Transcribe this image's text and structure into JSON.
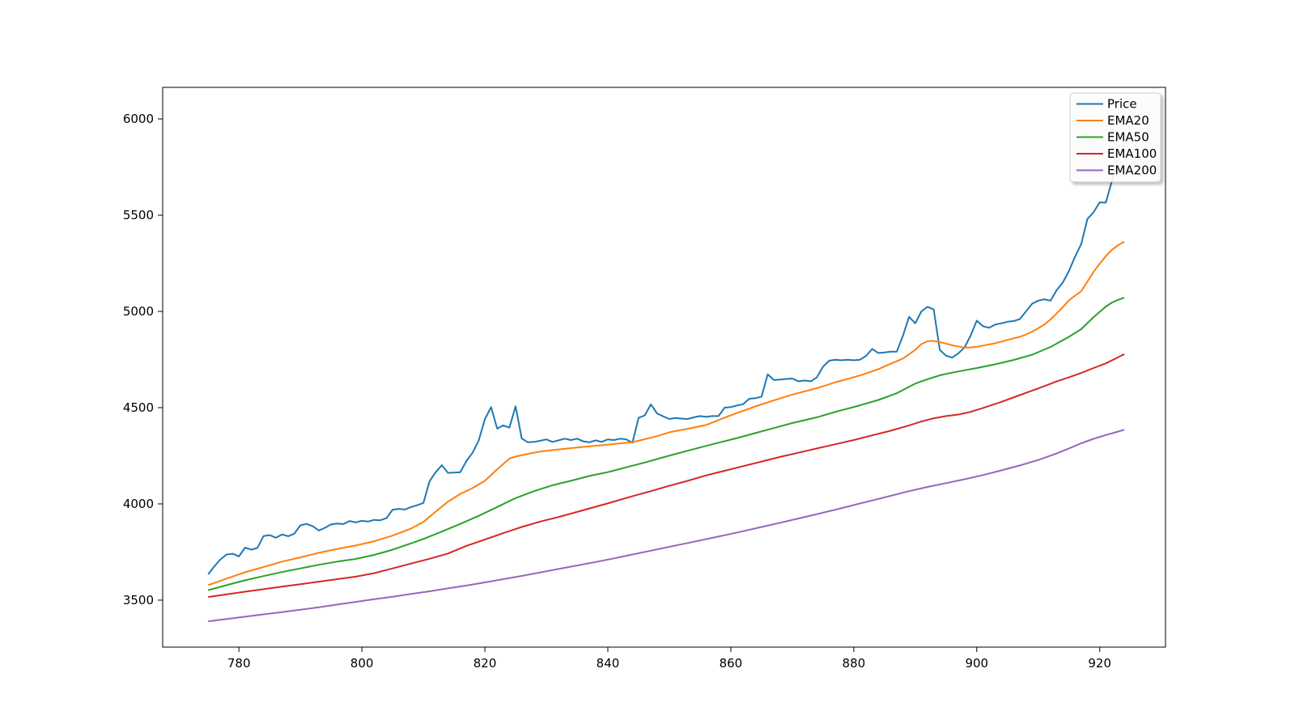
{
  "chart_data": {
    "type": "line",
    "title": "",
    "xlabel": "",
    "ylabel": "",
    "grid": false,
    "legend_position": "upper right",
    "axes": {
      "xlim": [
        767.6,
        930.7
      ],
      "ylim": [
        3256,
        6164
      ],
      "xticks": [
        780,
        800,
        820,
        840,
        860,
        880,
        900,
        920
      ],
      "yticks": [
        3500,
        4000,
        4500,
        5000,
        5500,
        6000
      ]
    },
    "series": [
      {
        "name": "Price",
        "color": "#1f77b4",
        "x_start": 775,
        "dx": 1,
        "values": [
          3634,
          3676,
          3712,
          3737,
          3741,
          3727,
          3773,
          3762,
          3771,
          3833,
          3838,
          3824,
          3841,
          3832,
          3845,
          3889,
          3896,
          3884,
          3862,
          3876,
          3894,
          3898,
          3895,
          3911,
          3904,
          3912,
          3908,
          3917,
          3915,
          3926,
          3970,
          3974,
          3971,
          3984,
          3993,
          4005,
          4117,
          4165,
          4201,
          4161,
          4163,
          4165,
          4223,
          4266,
          4330,
          4440,
          4503,
          4391,
          4408,
          4396,
          4507,
          4340,
          4320,
          4322,
          4328,
          4335,
          4322,
          4330,
          4339,
          4332,
          4339,
          4325,
          4320,
          4330,
          4322,
          4335,
          4332,
          4339,
          4335,
          4318,
          4447,
          4460,
          4517,
          4470,
          4455,
          4441,
          4446,
          4443,
          4441,
          4450,
          4456,
          4453,
          4456,
          4456,
          4500,
          4503,
          4511,
          4518,
          4546,
          4549,
          4557,
          4673,
          4644,
          4646,
          4649,
          4651,
          4637,
          4641,
          4637,
          4658,
          4713,
          4744,
          4749,
          4746,
          4749,
          4746,
          4749,
          4769,
          4805,
          4784,
          4787,
          4791,
          4791,
          4874,
          4972,
          4938,
          5000,
          5024,
          5010,
          4800,
          4770,
          4760,
          4782,
          4812,
          4874,
          4952,
          4923,
          4915,
          4932,
          4938,
          4946,
          4950,
          4960,
          5000,
          5040,
          5056,
          5063,
          5056,
          5110,
          5150,
          5210,
          5285,
          5350,
          5480,
          5515,
          5567,
          5565,
          5680,
          5790,
          5870
        ]
      },
      {
        "name": "EMA20",
        "color": "#ff7f0e",
        "points": [
          [
            775,
            3578
          ],
          [
            778,
            3612
          ],
          [
            781,
            3645
          ],
          [
            784,
            3672
          ],
          [
            787,
            3700
          ],
          [
            790,
            3722
          ],
          [
            793,
            3746
          ],
          [
            796,
            3766
          ],
          [
            799,
            3784
          ],
          [
            802,
            3806
          ],
          [
            805,
            3835
          ],
          [
            808,
            3872
          ],
          [
            810,
            3906
          ],
          [
            812,
            3960
          ],
          [
            814,
            4012
          ],
          [
            816,
            4052
          ],
          [
            818,
            4082
          ],
          [
            820,
            4120
          ],
          [
            822,
            4180
          ],
          [
            824,
            4235
          ],
          [
            825,
            4246
          ],
          [
            827,
            4260
          ],
          [
            829,
            4272
          ],
          [
            832,
            4283
          ],
          [
            835,
            4293
          ],
          [
            838,
            4302
          ],
          [
            841,
            4311
          ],
          [
            844,
            4321
          ],
          [
            846,
            4336
          ],
          [
            848,
            4352
          ],
          [
            850,
            4372
          ],
          [
            853,
            4390
          ],
          [
            856,
            4410
          ],
          [
            859,
            4448
          ],
          [
            861,
            4472
          ],
          [
            864,
            4506
          ],
          [
            867,
            4538
          ],
          [
            870,
            4568
          ],
          [
            874,
            4601
          ],
          [
            877,
            4632
          ],
          [
            881,
            4667
          ],
          [
            884,
            4700
          ],
          [
            886,
            4728
          ],
          [
            888,
            4755
          ],
          [
            890,
            4800
          ],
          [
            891,
            4830
          ],
          [
            892,
            4845
          ],
          [
            893,
            4847
          ],
          [
            894,
            4840
          ],
          [
            895,
            4833
          ],
          [
            896,
            4824
          ],
          [
            897,
            4818
          ],
          [
            898,
            4812
          ],
          [
            899,
            4813
          ],
          [
            900,
            4816
          ],
          [
            901,
            4822
          ],
          [
            902,
            4828
          ],
          [
            903,
            4835
          ],
          [
            904,
            4843
          ],
          [
            905,
            4852
          ],
          [
            906,
            4860
          ],
          [
            907,
            4868
          ],
          [
            908,
            4880
          ],
          [
            909,
            4895
          ],
          [
            910,
            4912
          ],
          [
            911,
            4932
          ],
          [
            912,
            4958
          ],
          [
            913,
            4990
          ],
          [
            914,
            5022
          ],
          [
            915,
            5058
          ],
          [
            916,
            5082
          ],
          [
            917,
            5105
          ],
          [
            918,
            5155
          ],
          [
            919,
            5205
          ],
          [
            920,
            5248
          ],
          [
            921,
            5287
          ],
          [
            922,
            5320
          ],
          [
            923,
            5344
          ],
          [
            924,
            5362
          ]
        ]
      },
      {
        "name": "EMA50",
        "color": "#2ca02c",
        "points": [
          [
            775,
            3552
          ],
          [
            778,
            3578
          ],
          [
            781,
            3603
          ],
          [
            784,
            3625
          ],
          [
            787,
            3646
          ],
          [
            790,
            3665
          ],
          [
            793,
            3684
          ],
          [
            796,
            3700
          ],
          [
            799,
            3714
          ],
          [
            802,
            3735
          ],
          [
            805,
            3762
          ],
          [
            808,
            3795
          ],
          [
            810,
            3818
          ],
          [
            813,
            3856
          ],
          [
            816,
            3896
          ],
          [
            819,
            3938
          ],
          [
            822,
            3984
          ],
          [
            825,
            4030
          ],
          [
            828,
            4066
          ],
          [
            831,
            4097
          ],
          [
            834,
            4120
          ],
          [
            837,
            4145
          ],
          [
            840,
            4165
          ],
          [
            843,
            4190
          ],
          [
            846,
            4215
          ],
          [
            849,
            4242
          ],
          [
            852,
            4268
          ],
          [
            855,
            4293
          ],
          [
            858,
            4318
          ],
          [
            861,
            4342
          ],
          [
            864,
            4368
          ],
          [
            867,
            4394
          ],
          [
            870,
            4420
          ],
          [
            874,
            4450
          ],
          [
            877,
            4478
          ],
          [
            881,
            4512
          ],
          [
            884,
            4540
          ],
          [
            887,
            4575
          ],
          [
            890,
            4625
          ],
          [
            892,
            4648
          ],
          [
            894,
            4668
          ],
          [
            896,
            4682
          ],
          [
            898,
            4694
          ],
          [
            900,
            4706
          ],
          [
            903,
            4725
          ],
          [
            906,
            4748
          ],
          [
            909,
            4775
          ],
          [
            912,
            4815
          ],
          [
            915,
            4868
          ],
          [
            917,
            4908
          ],
          [
            919,
            4970
          ],
          [
            921,
            5025
          ],
          [
            922,
            5046
          ],
          [
            923,
            5060
          ],
          [
            924,
            5072
          ]
        ]
      },
      {
        "name": "EMA100",
        "color": "#d62728",
        "points": [
          [
            775,
            3516
          ],
          [
            778,
            3530
          ],
          [
            781,
            3544
          ],
          [
            784,
            3557
          ],
          [
            787,
            3570
          ],
          [
            790,
            3583
          ],
          [
            793,
            3596
          ],
          [
            796,
            3609
          ],
          [
            799,
            3622
          ],
          [
            802,
            3640
          ],
          [
            805,
            3665
          ],
          [
            808,
            3690
          ],
          [
            811,
            3715
          ],
          [
            814,
            3742
          ],
          [
            817,
            3782
          ],
          [
            820,
            3815
          ],
          [
            823,
            3848
          ],
          [
            826,
            3880
          ],
          [
            829,
            3908
          ],
          [
            832,
            3932
          ],
          [
            835,
            3958
          ],
          [
            838,
            3985
          ],
          [
            841,
            4012
          ],
          [
            844,
            4040
          ],
          [
            847,
            4066
          ],
          [
            850,
            4094
          ],
          [
            853,
            4120
          ],
          [
            856,
            4148
          ],
          [
            859,
            4172
          ],
          [
            862,
            4196
          ],
          [
            865,
            4220
          ],
          [
            868,
            4244
          ],
          [
            871,
            4266
          ],
          [
            874,
            4288
          ],
          [
            877,
            4310
          ],
          [
            880,
            4332
          ],
          [
            883,
            4356
          ],
          [
            886,
            4380
          ],
          [
            889,
            4408
          ],
          [
            891,
            4428
          ],
          [
            893,
            4445
          ],
          [
            895,
            4456
          ],
          [
            897,
            4464
          ],
          [
            899,
            4478
          ],
          [
            901,
            4498
          ],
          [
            904,
            4530
          ],
          [
            907,
            4565
          ],
          [
            910,
            4600
          ],
          [
            913,
            4636
          ],
          [
            915,
            4658
          ],
          [
            917,
            4680
          ],
          [
            919,
            4706
          ],
          [
            921,
            4730
          ],
          [
            923,
            4762
          ],
          [
            924,
            4778
          ]
        ]
      },
      {
        "name": "EMA200",
        "color": "#9467bd",
        "points": [
          [
            775,
            3390
          ],
          [
            778,
            3402
          ],
          [
            781,
            3414
          ],
          [
            784,
            3426
          ],
          [
            787,
            3438
          ],
          [
            790,
            3450
          ],
          [
            793,
            3463
          ],
          [
            796,
            3477
          ],
          [
            799,
            3491
          ],
          [
            802,
            3505
          ],
          [
            805,
            3518
          ],
          [
            808,
            3532
          ],
          [
            811,
            3546
          ],
          [
            814,
            3561
          ],
          [
            817,
            3576
          ],
          [
            820,
            3592
          ],
          [
            823,
            3609
          ],
          [
            826,
            3626
          ],
          [
            829,
            3644
          ],
          [
            832,
            3662
          ],
          [
            835,
            3680
          ],
          [
            838,
            3698
          ],
          [
            841,
            3717
          ],
          [
            844,
            3737
          ],
          [
            847,
            3757
          ],
          [
            850,
            3777
          ],
          [
            853,
            3797
          ],
          [
            856,
            3817
          ],
          [
            859,
            3837
          ],
          [
            862,
            3858
          ],
          [
            865,
            3880
          ],
          [
            868,
            3902
          ],
          [
            871,
            3924
          ],
          [
            874,
            3947
          ],
          [
            877,
            3970
          ],
          [
            880,
            3994
          ],
          [
            883,
            4018
          ],
          [
            886,
            4042
          ],
          [
            889,
            4066
          ],
          [
            892,
            4088
          ],
          [
            895,
            4108
          ],
          [
            898,
            4128
          ],
          [
            901,
            4150
          ],
          [
            904,
            4174
          ],
          [
            907,
            4200
          ],
          [
            910,
            4228
          ],
          [
            913,
            4262
          ],
          [
            915,
            4288
          ],
          [
            917,
            4315
          ],
          [
            919,
            4338
          ],
          [
            921,
            4358
          ],
          [
            923,
            4376
          ],
          [
            924,
            4385
          ]
        ]
      }
    ]
  },
  "legend": {
    "entries": [
      "Price",
      "EMA20",
      "EMA50",
      "EMA100",
      "EMA200"
    ]
  },
  "style": {
    "background": "#ffffff",
    "spine_color": "#000000",
    "legend_border": "#cccccc"
  }
}
